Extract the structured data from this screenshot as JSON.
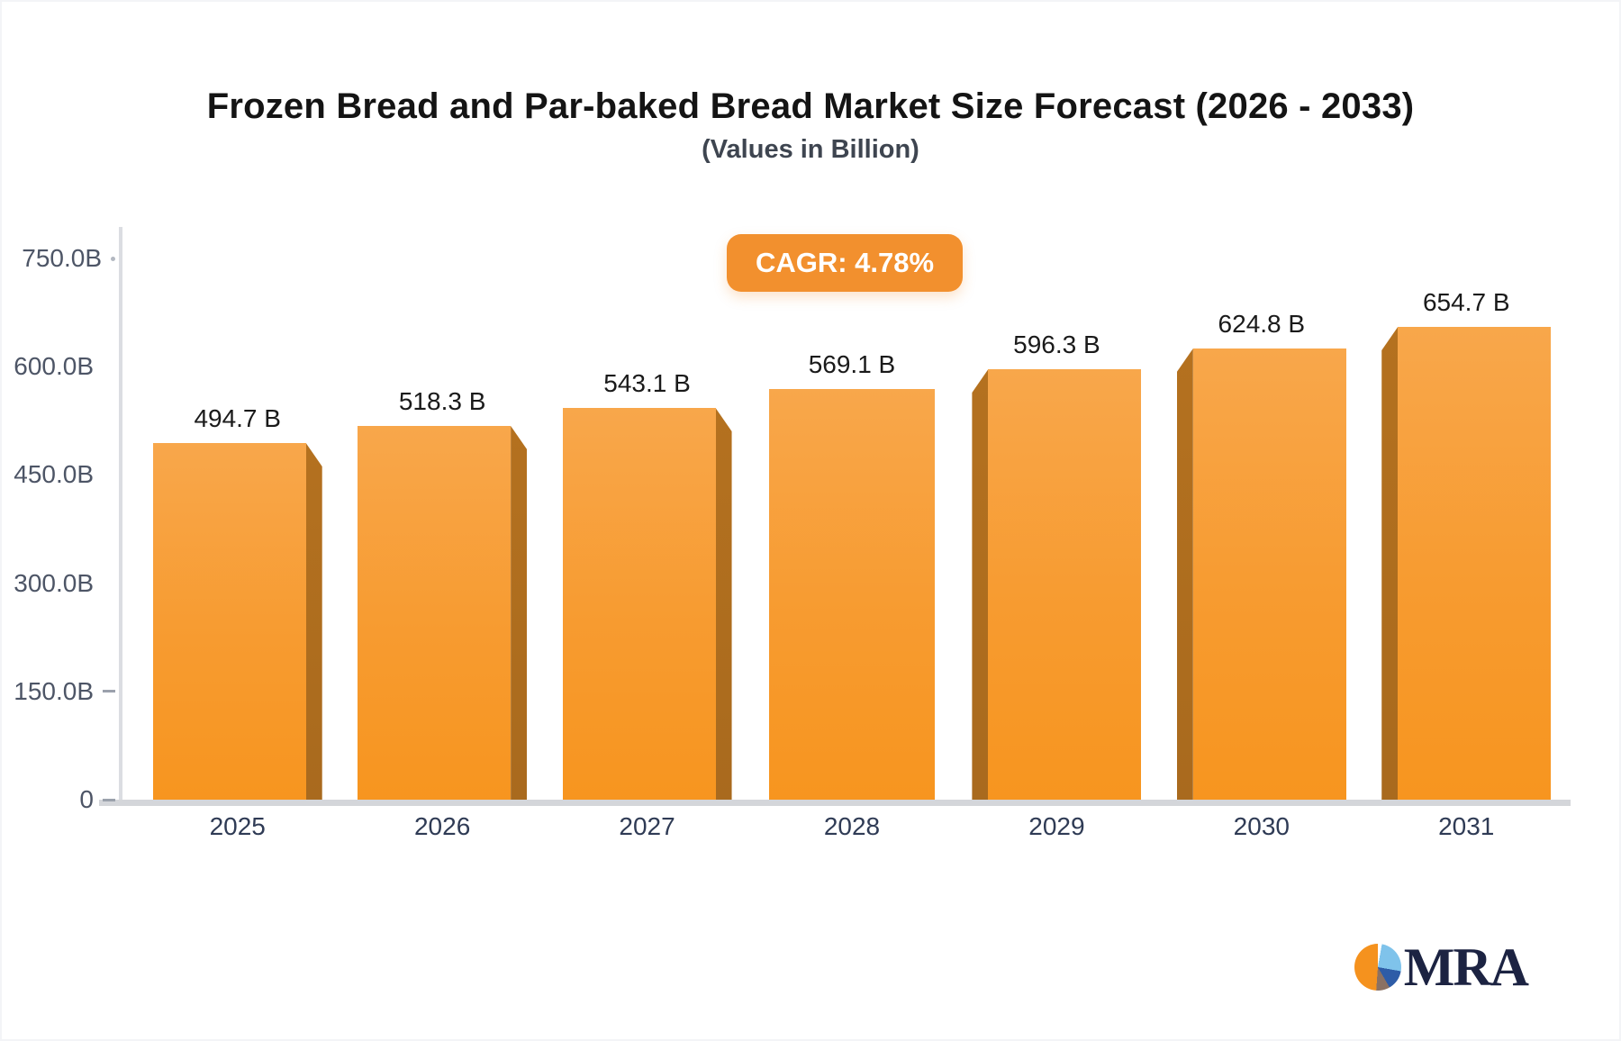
{
  "header": {
    "title": "Frozen Bread and Par-baked Bread Market Size Forecast (2026 - 2033)",
    "subtitle": "(Values in Billion)",
    "cagr_badge": "CAGR: 4.78%"
  },
  "chart_data": {
    "type": "bar",
    "title": "Frozen Bread and Par-baked Bread Market Size Forecast (2026 - 2033)",
    "subtitle": "(Values in Billion)",
    "categories": [
      "2025",
      "2026",
      "2027",
      "2028",
      "2029",
      "2030",
      "2031"
    ],
    "values": [
      494.7,
      518.3,
      543.1,
      569.1,
      596.3,
      624.8,
      654.7
    ],
    "value_labels": [
      "494.7 B",
      "518.3 B",
      "543.1 B",
      "569.1 B",
      "596.3 B",
      "624.8 B",
      "654.7 B"
    ],
    "xlabel": "",
    "ylabel": "",
    "ylim": [
      0,
      750
    ],
    "yticks": [
      {
        "value": 0,
        "label": "0",
        "mark": "dash"
      },
      {
        "value": 150,
        "label": "150.0B",
        "mark": "dash"
      },
      {
        "value": 300,
        "label": "300.0B",
        "mark": "none"
      },
      {
        "value": 450,
        "label": "450.0B",
        "mark": "none"
      },
      {
        "value": 600,
        "label": "600.0B",
        "mark": "none"
      },
      {
        "value": 750,
        "label": "750.0B",
        "mark": "dot"
      }
    ],
    "grid": false,
    "legend": false,
    "cagr": "4.78%",
    "bar_style": "3d-perspective",
    "colors": {
      "bar_top": "#f8a74b",
      "bar_bottom": "#f7951f",
      "bar_side": "#ad6c1e",
      "badge": "#f2902e",
      "axis_line": "#d4d6da",
      "tick_text": "#4d5566",
      "category_text": "#2f3b55",
      "value_text": "#1a1a1a"
    }
  },
  "footer": {
    "logo_text": "MRA",
    "logo_icon": "pie-chart-icon",
    "logo_pie_colors": [
      "#f5921e",
      "#7fc3eb",
      "#2e5ca7",
      "#8b7163"
    ],
    "logo_text_color": "#1c2342"
  }
}
